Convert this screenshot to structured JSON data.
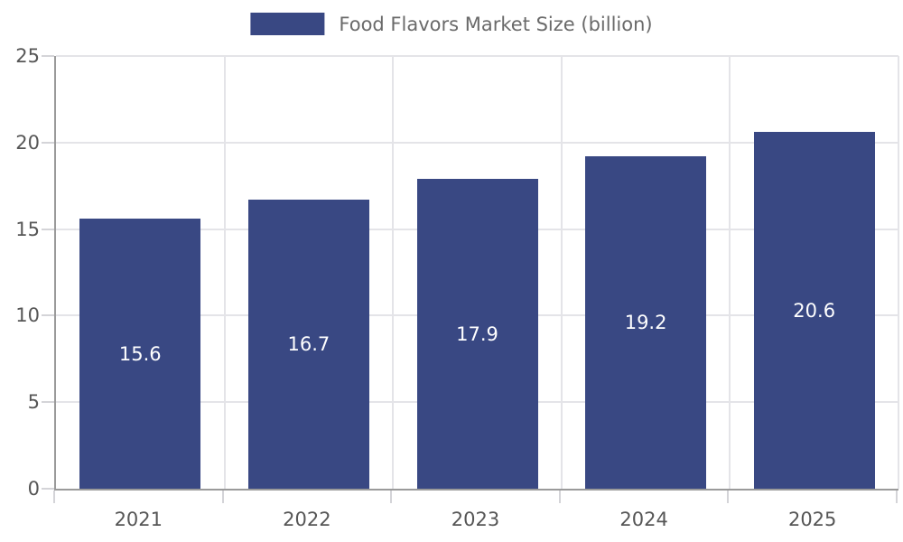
{
  "legend": {
    "label": "Food Flavors Market Size (billion)"
  },
  "colors": {
    "bar": "#394883",
    "bar_label": "#ffffff",
    "grid": "#e4e4e8",
    "tick": "#d4d4d8",
    "spine": "#9a9a9a",
    "tick_label": "#565656",
    "legend_text": "#6a6a6a",
    "background": "#ffffff"
  },
  "chart_data": {
    "type": "bar",
    "title": "Food Flavors Market Size (billion)",
    "categories": [
      "2021",
      "2022",
      "2023",
      "2024",
      "2025"
    ],
    "values": [
      15.6,
      16.7,
      17.9,
      19.2,
      20.6
    ],
    "bar_labels": [
      "15.6",
      "16.7",
      "17.9",
      "19.2",
      "20.6"
    ],
    "xlabel": "",
    "ylabel": "",
    "ylim": [
      0,
      25
    ],
    "yticks": [
      0,
      5,
      10,
      15,
      20,
      25
    ],
    "grid": true,
    "legend_position": "top-center"
  }
}
